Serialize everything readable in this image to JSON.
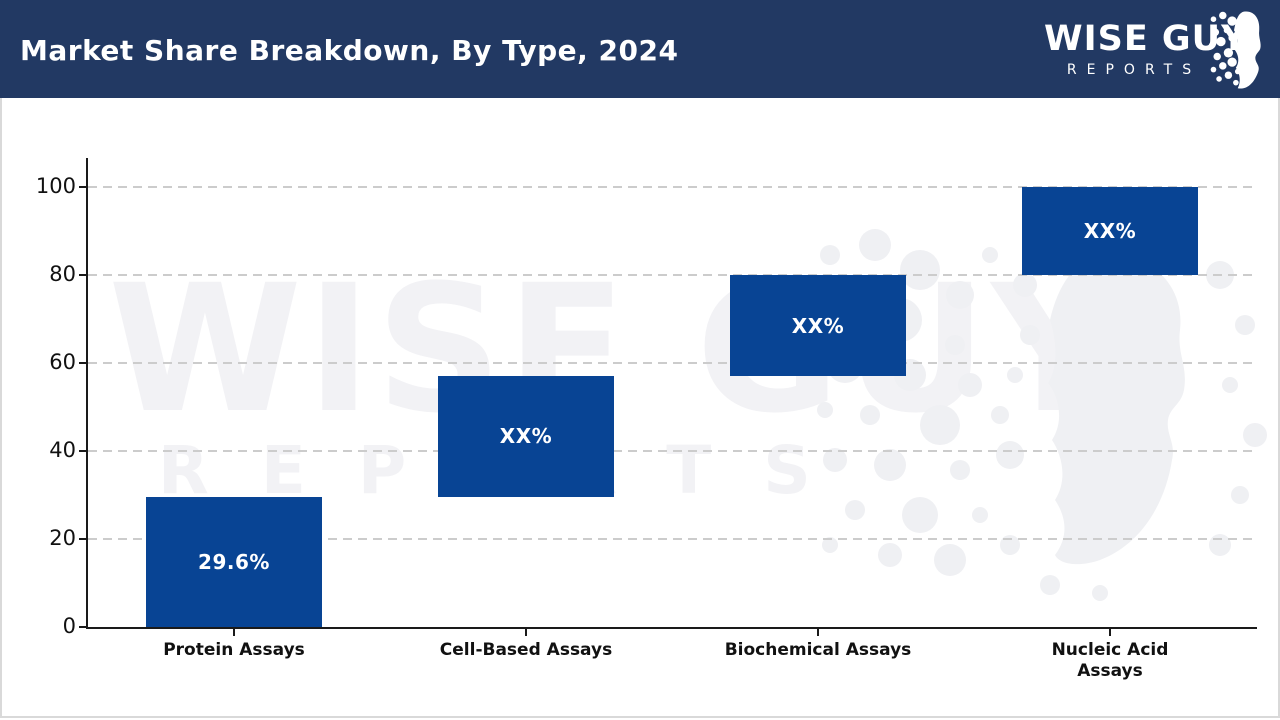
{
  "header": {
    "title": "Market Share Breakdown, By Type, 2024",
    "logo": {
      "title": "WISE GUY",
      "subtitle": "REPORTS"
    }
  },
  "watermark": {
    "line1": "WISE GUY",
    "line2": "REPORTS"
  },
  "chart_data": {
    "type": "bar",
    "subtype": "floating-waterfall-bars",
    "title": "Market Share Breakdown, By Type, 2024",
    "categories": [
      "Protein Assays",
      "Cell-Based Assays",
      "Biochemical Assays",
      "Nucleic Acid\nAssays"
    ],
    "bars": [
      {
        "category": "Protein Assays",
        "start": 0,
        "end": 29.6,
        "label": "29.6%"
      },
      {
        "category": "Cell-Based Assays",
        "start": 29.6,
        "end": 57,
        "label": "XX%"
      },
      {
        "category": "Biochemical Assays",
        "start": 57,
        "end": 80,
        "label": "XX%"
      },
      {
        "category": "Nucleic Acid\nAssays",
        "start": 80,
        "end": 100,
        "label": "XX%"
      }
    ],
    "yticks": [
      0,
      20,
      40,
      60,
      80,
      100
    ],
    "ylim": [
      0,
      107
    ],
    "xlabel": "",
    "ylabel": "",
    "grid": "horizontal-dashed",
    "legend": "none",
    "bar_color": "#084494",
    "bar_label_color": "#ffffff",
    "axis_color": "#1a1a1a",
    "grid_color": "#cccccc"
  },
  "colors": {
    "header_bg": "#223963",
    "watermark": "#f2f2f5",
    "frame_border": "#d9d9d9"
  }
}
